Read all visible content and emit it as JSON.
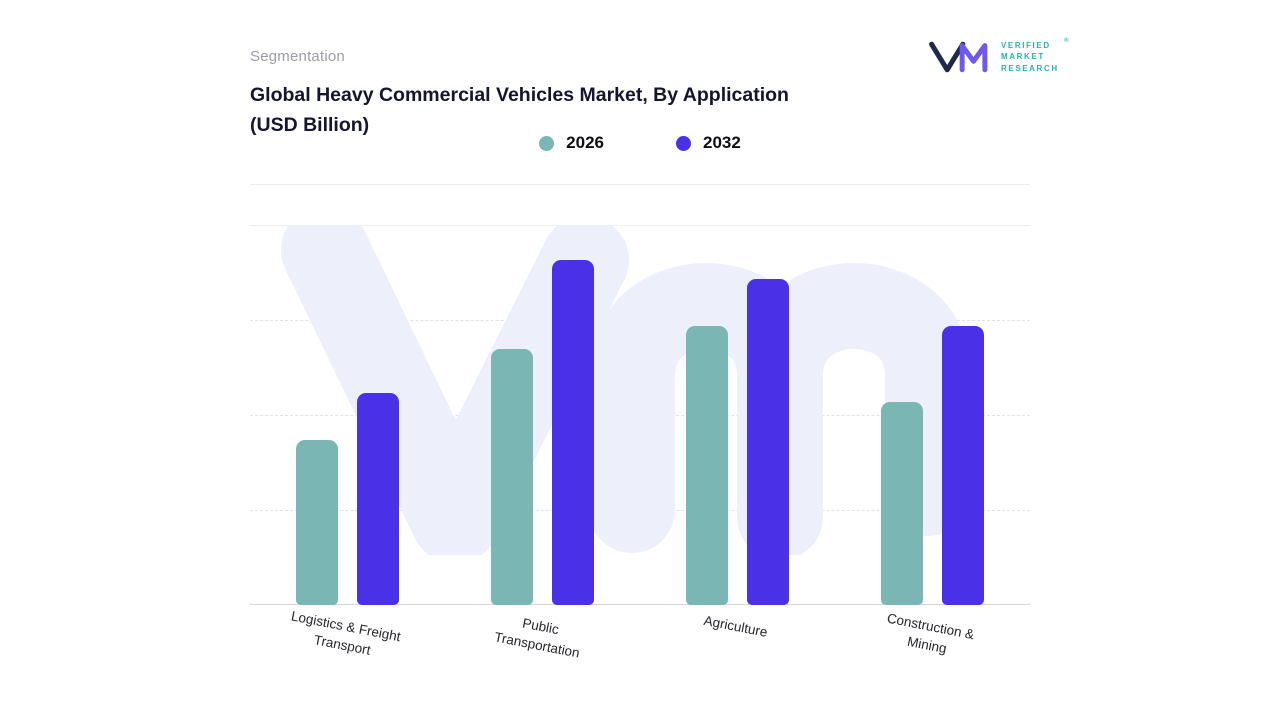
{
  "page": {
    "eyebrow": "Segmentation",
    "title_line1": "Global Heavy Commercial Vehicles Market, By Application",
    "title_line2": "(USD Billion)"
  },
  "logo": {
    "line1": "VERIFIED",
    "line2": "MARKET",
    "line3": "RESEARCH",
    "registered": "®",
    "text_color": "#2bb2ac",
    "glyph_navy": "#1f2a4a",
    "glyph_purple": "#6e59f0"
  },
  "chart_data": {
    "type": "bar",
    "title": "Global Heavy Commercial Vehicles Market, By Application (USD Billion)",
    "units": "USD Billion",
    "categories": [
      "Logistics & Freight Transport",
      "Public Transportation",
      "Agriculture",
      "Construction & Mining"
    ],
    "category_label_lines": [
      [
        "Logistics & Freight",
        "Transport"
      ],
      [
        "Public",
        "Transportation"
      ],
      [
        "Agriculture"
      ],
      [
        "Construction &",
        "Mining"
      ]
    ],
    "series": [
      {
        "name": "2026",
        "color": "#7ab7b4",
        "values": [
          52,
          81,
          88,
          64
        ]
      },
      {
        "name": "2032",
        "color": "#4a31e8",
        "values": [
          67,
          109,
          103,
          88
        ]
      }
    ],
    "ylim": [
      0,
      120
    ],
    "y_axis_labels_shown": false,
    "value_labels_shown": false,
    "grid": "dashed-horizontal",
    "legend_position": "top-center",
    "background_watermark": "vm-monogram"
  }
}
